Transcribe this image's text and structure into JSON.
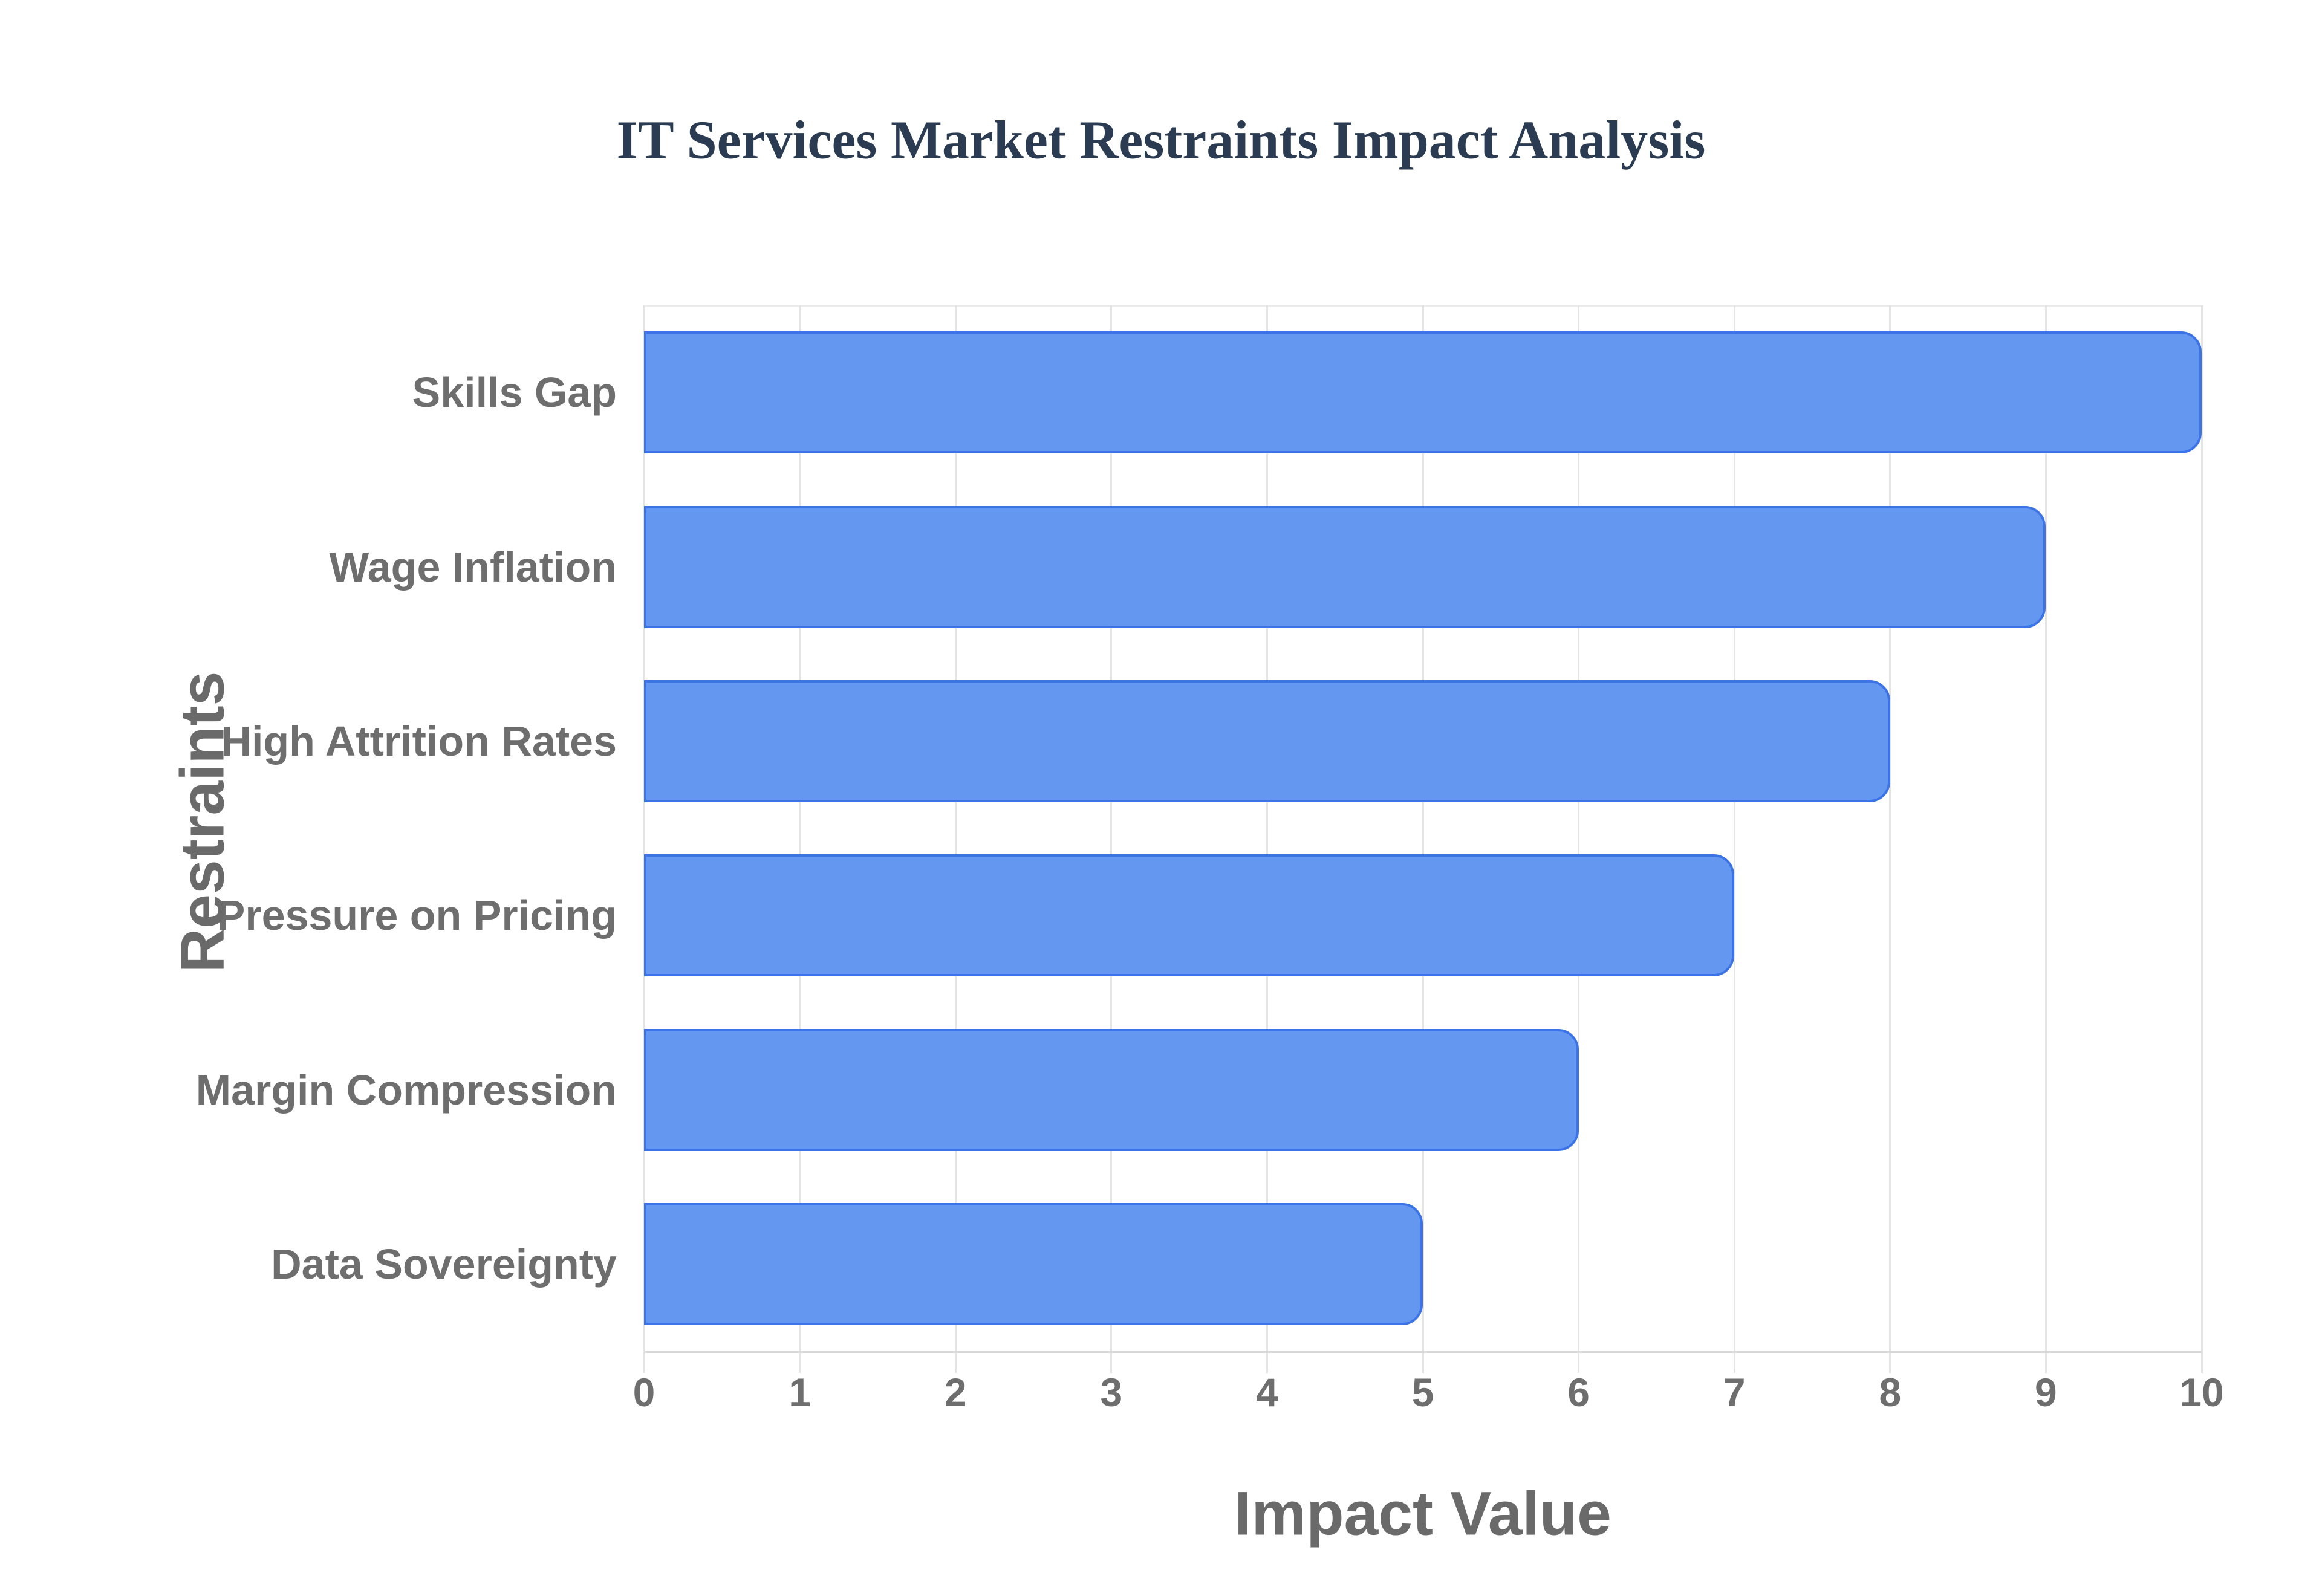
{
  "chart_data": {
    "type": "bar",
    "orientation": "horizontal",
    "title": "IT Services Market Restraints Impact Analysis",
    "categories": [
      "Skills Gap",
      "Wage Inflation",
      "High Attrition Rates",
      "Pressure on Pricing",
      "Margin Compression",
      "Data Sovereignty"
    ],
    "values": [
      10,
      9,
      8,
      7,
      6,
      5
    ],
    "xlabel": "Impact Value",
    "ylabel": "Restraints",
    "xlim": [
      0,
      10
    ],
    "xticks": [
      "0",
      "1",
      "2",
      "3",
      "4",
      "5",
      "6",
      "7",
      "8",
      "9",
      "10"
    ],
    "grid": true,
    "legend": "none",
    "colors": {
      "bar_fill": "#6498F0",
      "bar_border": "#3C73E6",
      "grid_line": "#e4e4e4",
      "axis_line": "#d9d9d9",
      "tick_text": "#6e6e6e",
      "axis_title_text": "#6a6a6a",
      "title_text": "#2b3c52",
      "background": "#ffffff"
    }
  }
}
